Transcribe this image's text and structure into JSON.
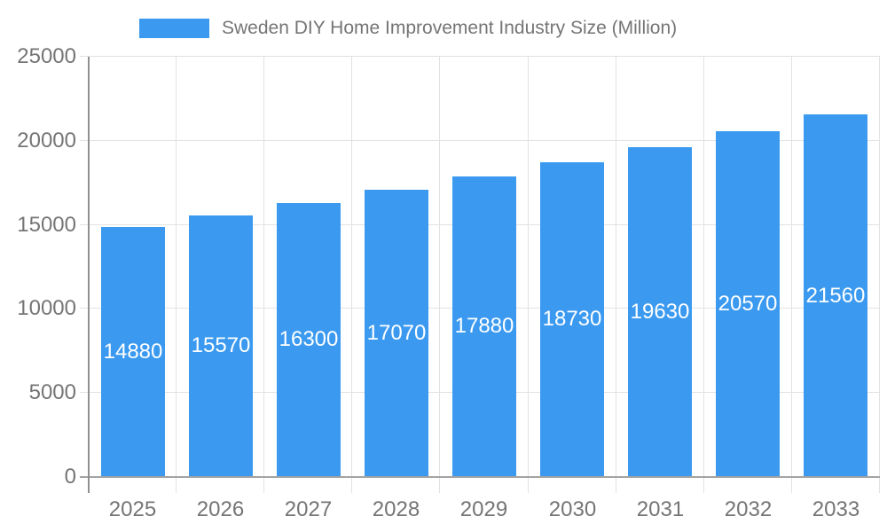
{
  "chart_data": {
    "type": "bar",
    "title": "Sweden DIY Home Improvement Industry Size (Million)",
    "categories": [
      "2025",
      "2026",
      "2027",
      "2028",
      "2029",
      "2030",
      "2031",
      "2032",
      "2033"
    ],
    "values": [
      14880,
      15570,
      16300,
      17070,
      17880,
      18730,
      19630,
      20570,
      21560
    ],
    "xlabel": "",
    "ylabel": "",
    "ylim": [
      0,
      25000
    ],
    "yticks": [
      0,
      5000,
      10000,
      15000,
      20000,
      25000
    ],
    "grid": true,
    "legend_position": "top",
    "value_label_position": "inside-center",
    "colors": {
      "bar": "#3b9af0",
      "value_label": "#ffffff",
      "axis_text": "#757575",
      "grid_line": "#e2e2e2",
      "y_axis_line": "#909090",
      "x_axis_line": "#a3a3a3",
      "background": "#ffffff"
    }
  }
}
